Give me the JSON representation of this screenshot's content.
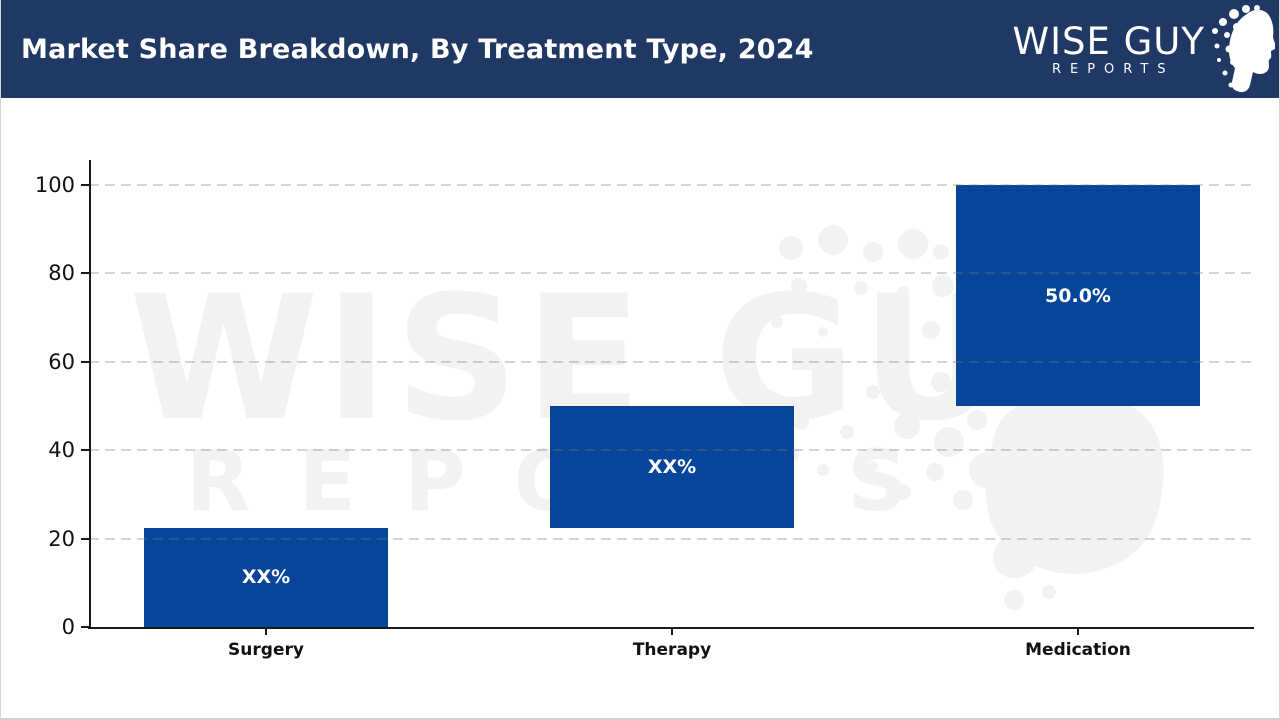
{
  "header": {
    "title": "Market Share Breakdown, By Treatment Type, 2024",
    "logo": {
      "line1": "WISE GUY",
      "line2": "REPORTS"
    }
  },
  "watermark": {
    "line1": "WISE GUY",
    "line2": "REPORTS"
  },
  "chart_data": {
    "type": "bar",
    "subtype": "waterfall",
    "title": "Market Share Breakdown, By Treatment Type, 2024",
    "categories": [
      "Surgery",
      "Therapy",
      "Medication"
    ],
    "bars": [
      {
        "category": "Surgery",
        "start": 0,
        "end": 22.5,
        "label": "XX%"
      },
      {
        "category": "Therapy",
        "start": 22.5,
        "end": 50.0,
        "label": "XX%"
      },
      {
        "category": "Medication",
        "start": 50.0,
        "end": 100.0,
        "label": "50.0%"
      }
    ],
    "yticks": [
      0,
      20,
      40,
      60,
      80,
      100
    ],
    "ylim": [
      0,
      105
    ],
    "grid": "horizontal-dashed",
    "legend": "none",
    "bar_color": "#07459a",
    "bar_label_color": "#ffffff",
    "header_color": "#1f3864"
  }
}
